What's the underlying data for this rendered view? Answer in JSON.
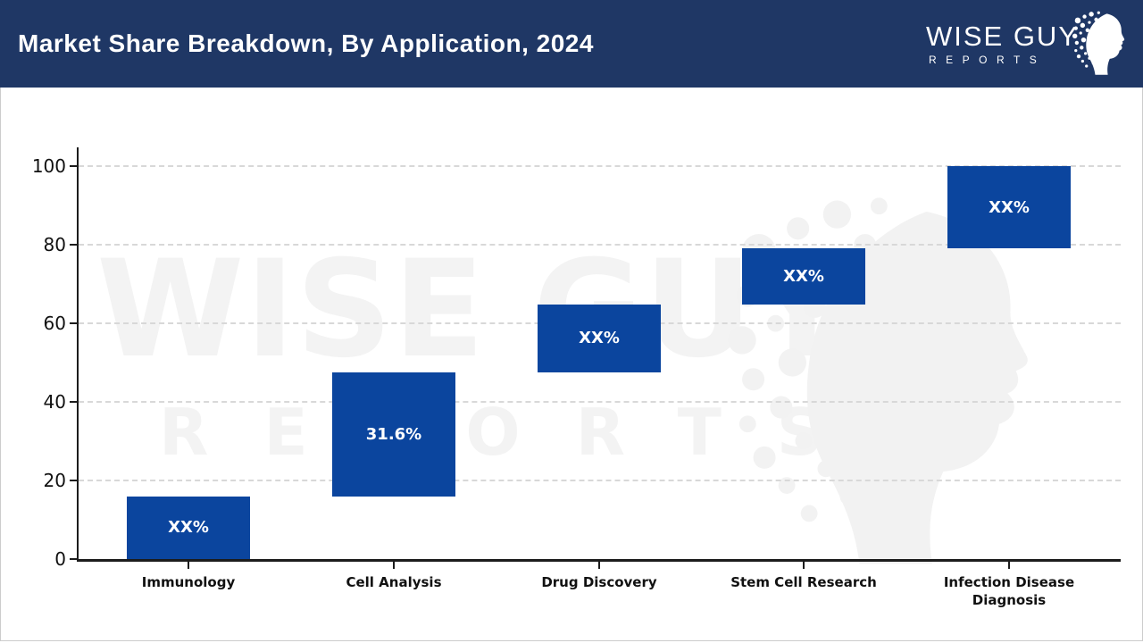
{
  "header": {
    "title": "Market Share Breakdown, By Application, 2024",
    "logo": {
      "line1": "WISE GUY",
      "line2": "REPORTS"
    }
  },
  "watermark": {
    "line1": "WISE GUY",
    "line2": "REPORTS"
  },
  "colors": {
    "header_bg": "#1f3765",
    "bar": "#0b459e",
    "bar_label": "#ffffff",
    "axis": "#1c1c1c",
    "grid": "#d8d8d8",
    "watermark": "#f3f3f3"
  },
  "chart_data": {
    "type": "bar",
    "subtype": "waterfall",
    "title": "Market Share Breakdown, By Application, 2024",
    "xlabel": "",
    "ylabel": "",
    "categories": [
      "Immunology",
      "Cell Analysis",
      "Drug Discovery",
      "Stem Cell Research",
      "Infection Disease Diagnosis"
    ],
    "values": [
      16,
      31.6,
      17.2,
      14.2,
      21
    ],
    "segments": [
      {
        "category": "Immunology",
        "start": 0,
        "end": 16,
        "label": "XX%"
      },
      {
        "category": "Cell Analysis",
        "start": 16,
        "end": 47.6,
        "label": "31.6%"
      },
      {
        "category": "Drug Discovery",
        "start": 47.6,
        "end": 64.8,
        "label": "XX%"
      },
      {
        "category": "Stem Cell Research",
        "start": 64.8,
        "end": 79,
        "label": "XX%"
      },
      {
        "category": "Infection Disease Diagnosis",
        "start": 79,
        "end": 100,
        "label": "XX%"
      }
    ],
    "ylim": [
      0,
      100
    ],
    "yticks": [
      0,
      20,
      40,
      60,
      80,
      100
    ],
    "grid": "horizontal-dashed",
    "legend": "none",
    "bar_color": "#0b459e",
    "bar_label_color": "#ffffff"
  }
}
